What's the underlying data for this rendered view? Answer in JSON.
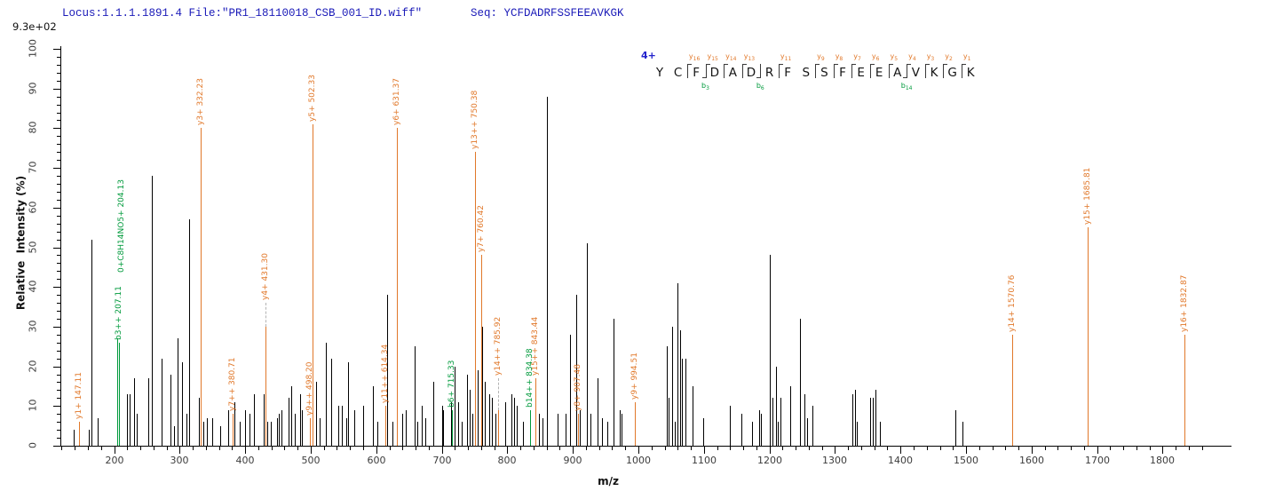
{
  "header": {
    "locus_file": "Locus:1.1.1.1891.4 File:\"PR1_18110018_CSB_001_ID.wiff\"",
    "seq": "Seq: YCFDADRFSSFEEAVKGK",
    "base_peak_intensity": "9.3e+02"
  },
  "peptide": {
    "charge_label": "4+",
    "sequence": [
      "Y",
      "C",
      "F",
      "D",
      "A",
      "D",
      "R",
      "F",
      "S",
      "S",
      "F",
      "E",
      "E",
      "A",
      "V",
      "K",
      "G",
      "K"
    ],
    "cleavages": [
      {
        "after": 2,
        "y": "y16"
      },
      {
        "after": 3,
        "y": "y15",
        "b": "b3"
      },
      {
        "after": 4,
        "y": "y14"
      },
      {
        "after": 5,
        "y": "y13"
      },
      {
        "after": 6,
        "b": "b6"
      },
      {
        "after": 7,
        "y": "y11"
      },
      {
        "after": 9,
        "y": "y9"
      },
      {
        "after": 10,
        "y": "y8"
      },
      {
        "after": 11,
        "y": "y7"
      },
      {
        "after": 12,
        "y": "y6"
      },
      {
        "after": 13,
        "y": "y5"
      },
      {
        "after": 14,
        "y": "y4",
        "b": "b14"
      },
      {
        "after": 15,
        "y": "y3"
      },
      {
        "after": 16,
        "y": "y2"
      },
      {
        "after": 17,
        "y": "y1"
      }
    ]
  },
  "colors": {
    "y_ion": "#e1782a",
    "b_ion": "#009a3c",
    "unassigned": "#000000",
    "header_text": "#1a1ab8",
    "charge": "#2222cc"
  },
  "chart_data": {
    "type": "bar",
    "subtype": "ms2-stick-spectrum",
    "title": "",
    "xlabel": "m/z",
    "ylabel": "Relative  Intensity (%)",
    "xlim": [
      118,
      1905
    ],
    "ylim": [
      0,
      100
    ],
    "x_tick_minor_step": 20,
    "x_tick_major_step": 100,
    "x_tick_label_min": 200,
    "x_tick_label_max": 1800,
    "x_tick_minor_min": 120,
    "x_tick_minor_max": 1860,
    "y_tick_minor_step": 2,
    "y_tick_major_step": 10,
    "grid": false,
    "legend": "none",
    "series": [
      {
        "name": "y-ion annotated peaks",
        "color": "#e1782a",
        "peaks": [
          {
            "label": "y1+ 147.11",
            "mz": 147.11,
            "intensity": 6
          },
          {
            "label": "y3+ 332.23",
            "mz": 332.23,
            "intensity": 80
          },
          {
            "label": "y7++ 380.71",
            "mz": 380.71,
            "intensity": 8
          },
          {
            "label": "y4+ 431.30",
            "mz": 431.3,
            "intensity": 30,
            "label_at": 36,
            "dashed": true
          },
          {
            "label": "y9++ 498.20",
            "mz": 498.2,
            "intensity": 7
          },
          {
            "label": "y5+ 502.33",
            "mz": 502.33,
            "intensity": 81
          },
          {
            "label": "y11++ 614.34",
            "mz": 614.34,
            "intensity": 10
          },
          {
            "label": "y6+ 631.37",
            "mz": 631.37,
            "intensity": 80
          },
          {
            "label": "y13++ 750.38",
            "mz": 750.38,
            "intensity": 74
          },
          {
            "label": "y7+ 760.42",
            "mz": 760.42,
            "intensity": 48
          },
          {
            "label": "y14++ 785.92",
            "mz": 785.92,
            "intensity": 9,
            "label_at": 17,
            "dashed": true
          },
          {
            "label": "y15++ 843.44",
            "mz": 843.44,
            "intensity": 17
          },
          {
            "label": "y8+ 907.48",
            "mz": 907.48,
            "intensity": 8
          },
          {
            "label": "y9+ 994.51",
            "mz": 994.51,
            "intensity": 11
          },
          {
            "label": "y14+ 1570.76",
            "mz": 1570.76,
            "intensity": 28
          },
          {
            "label": "y15+ 1685.81",
            "mz": 1685.81,
            "intensity": 55
          },
          {
            "label": "y16+ 1832.87",
            "mz": 1832.87,
            "intensity": 28
          }
        ]
      },
      {
        "name": "b-ion and other annotated peaks",
        "color": "#009a3c",
        "peaks": [
          {
            "label": "0+C8H14NO5+ 204.13",
            "mz": 204.13,
            "intensity": 27,
            "label_at": 43,
            "label_dx": 5
          },
          {
            "label": "b3++ 207.11",
            "mz": 207.11,
            "intensity": 26
          },
          {
            "label": "b6+ 715.33",
            "mz": 715.33,
            "intensity": 9
          },
          {
            "label": "b14++ 834.38",
            "mz": 834.38,
            "intensity": 9
          }
        ]
      },
      {
        "name": "unassigned peaks",
        "color": "#000000",
        "peaks_mz_intensity": [
          [
            138,
            4
          ],
          [
            161,
            4
          ],
          [
            165,
            52
          ],
          [
            175,
            7
          ],
          [
            219,
            13
          ],
          [
            223,
            13
          ],
          [
            230,
            17
          ],
          [
            234,
            8
          ],
          [
            252,
            17
          ],
          [
            257,
            68
          ],
          [
            273,
            22
          ],
          [
            286,
            18
          ],
          [
            292,
            5
          ],
          [
            297,
            27
          ],
          [
            304,
            21
          ],
          [
            311,
            8
          ],
          [
            315,
            57
          ],
          [
            330,
            12
          ],
          [
            336,
            6
          ],
          [
            341,
            7
          ],
          [
            350,
            7
          ],
          [
            362,
            5
          ],
          [
            374,
            9
          ],
          [
            383,
            11
          ],
          [
            392,
            6
          ],
          [
            400,
            9
          ],
          [
            406,
            8
          ],
          [
            413,
            13
          ],
          [
            428,
            13
          ],
          [
            433,
            6
          ],
          [
            439,
            6
          ],
          [
            448,
            7
          ],
          [
            451,
            8
          ],
          [
            455,
            9
          ],
          [
            466,
            12
          ],
          [
            470,
            15
          ],
          [
            475,
            8
          ],
          [
            484,
            13
          ],
          [
            486,
            9
          ],
          [
            508,
            16
          ],
          [
            514,
            7
          ],
          [
            523,
            26
          ],
          [
            531,
            22
          ],
          [
            542,
            10
          ],
          [
            547,
            10
          ],
          [
            554,
            7
          ],
          [
            557,
            21
          ],
          [
            567,
            9
          ],
          [
            580,
            10
          ],
          [
            595,
            15
          ],
          [
            601,
            6
          ],
          [
            617,
            38
          ],
          [
            625,
            6
          ],
          [
            639,
            8
          ],
          [
            645,
            9
          ],
          [
            658,
            25
          ],
          [
            663,
            6
          ],
          [
            670,
            10
          ],
          [
            675,
            7
          ],
          [
            687,
            16
          ],
          [
            700,
            10
          ],
          [
            702,
            9
          ],
          [
            714,
            11
          ],
          [
            720,
            20
          ],
          [
            725,
            11
          ],
          [
            731,
            6
          ],
          [
            738,
            18
          ],
          [
            742,
            14
          ],
          [
            746,
            8
          ],
          [
            755,
            19
          ],
          [
            762,
            30
          ],
          [
            766,
            16
          ],
          [
            772,
            13
          ],
          [
            776,
            12
          ],
          [
            782,
            8
          ],
          [
            797,
            11
          ],
          [
            806,
            13
          ],
          [
            810,
            12
          ],
          [
            814,
            10
          ],
          [
            824,
            6
          ],
          [
            848,
            8
          ],
          [
            853,
            7
          ],
          [
            860,
            88
          ],
          [
            877,
            8
          ],
          [
            889,
            8
          ],
          [
            895,
            28
          ],
          [
            905,
            38
          ],
          [
            910,
            9
          ],
          [
            922,
            51
          ],
          [
            927,
            8
          ],
          [
            938,
            17
          ],
          [
            944,
            7
          ],
          [
            952,
            6
          ],
          [
            962,
            32
          ],
          [
            971,
            9
          ],
          [
            974,
            8
          ],
          [
            1043,
            25
          ],
          [
            1046,
            12
          ],
          [
            1052,
            30
          ],
          [
            1056,
            6
          ],
          [
            1060,
            41
          ],
          [
            1064,
            29
          ],
          [
            1067,
            22
          ],
          [
            1072,
            22
          ],
          [
            1083,
            15
          ],
          [
            1099,
            7
          ],
          [
            1139,
            10
          ],
          [
            1157,
            8
          ],
          [
            1174,
            6
          ],
          [
            1184,
            9
          ],
          [
            1187,
            8
          ],
          [
            1201,
            48
          ],
          [
            1205,
            12
          ],
          [
            1210,
            20
          ],
          [
            1213,
            6
          ],
          [
            1217,
            12
          ],
          [
            1231,
            15
          ],
          [
            1247,
            32
          ],
          [
            1254,
            13
          ],
          [
            1257,
            7
          ],
          [
            1266,
            10
          ],
          [
            1327,
            13
          ],
          [
            1331,
            14
          ],
          [
            1333,
            6
          ],
          [
            1354,
            12
          ],
          [
            1357,
            12
          ],
          [
            1362,
            14
          ],
          [
            1368,
            6
          ],
          [
            1483,
            9
          ],
          [
            1494,
            6
          ]
        ]
      }
    ]
  }
}
